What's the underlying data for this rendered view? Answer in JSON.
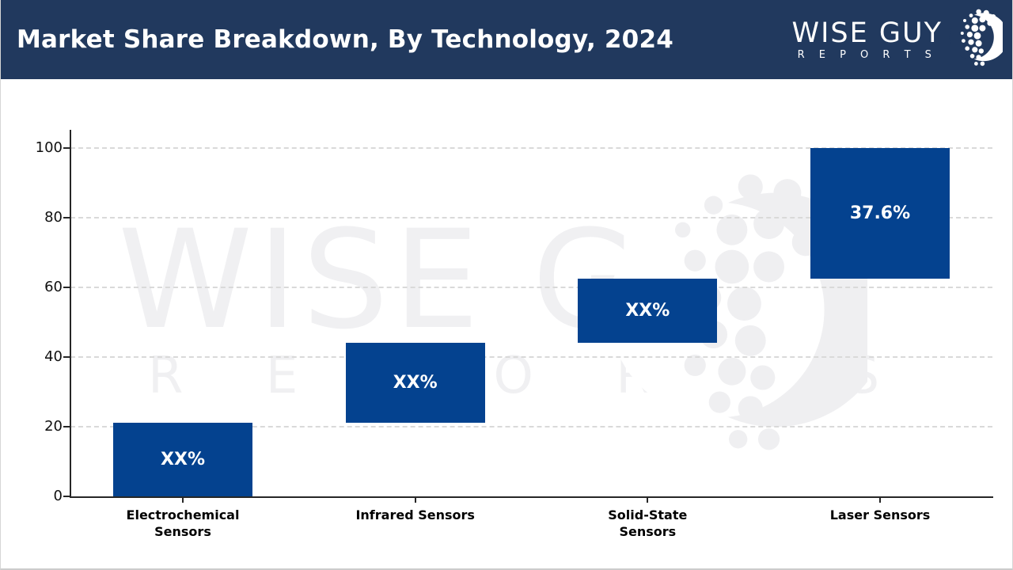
{
  "header": {
    "title": "Market Share Breakdown, By Technology, 2024",
    "bg_color": "#21395e",
    "logo": {
      "line1": "WISE GUY",
      "line2": "R E P O R T S"
    }
  },
  "watermark": {
    "line1": "WISE GUY",
    "line2": "R E P O R T S"
  },
  "chart_data": {
    "type": "bar",
    "subtype": "waterfall-floating-bars",
    "title": "Market Share Breakdown, By Technology, 2024",
    "categories": [
      "Electrochemical\nSensors",
      "Infrared Sensors",
      "Solid-State\nSensors",
      "Laser Sensors"
    ],
    "segments": [
      {
        "category": "Electrochemical Sensors",
        "start": 0,
        "end": 21,
        "value": 21,
        "label": "XX%"
      },
      {
        "category": "Infrared Sensors",
        "start": 21,
        "end": 44,
        "value": 23,
        "label": "XX%"
      },
      {
        "category": "Solid-State Sensors",
        "start": 44,
        "end": 62.4,
        "value": 18.4,
        "label": "XX%"
      },
      {
        "category": "Laser Sensors",
        "start": 62.4,
        "end": 100,
        "value": 37.6,
        "label": "37.6%"
      }
    ],
    "xlabel": "",
    "ylabel": "",
    "yticks": [
      0,
      20,
      40,
      60,
      80,
      100
    ],
    "ylim": [
      0,
      105
    ],
    "grid": "horizontal dashed gridlines at 20,40,60,80,100",
    "legend": "none",
    "bar_color": "#04428f",
    "bar_label_color": "#ffffff",
    "gridline_color": "#d9d9d9",
    "axis_color": "#262626"
  }
}
